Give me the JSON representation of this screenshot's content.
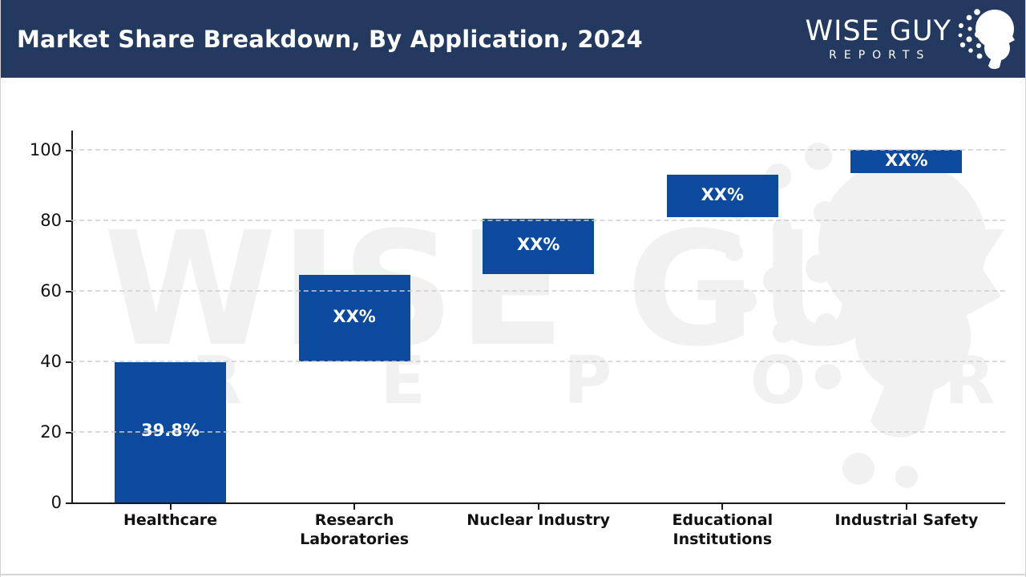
{
  "header": {
    "title": "Market Share Breakdown, By Application, 2024",
    "bg_color": "#23395f",
    "logo": {
      "line1": "WISE GUY",
      "line2": "REPORTS"
    }
  },
  "chart_data": {
    "type": "bar",
    "subtype": "waterfall",
    "title": "Market Share Breakdown, By Application, 2024",
    "xlabel": "",
    "ylabel": "",
    "categories": [
      "Healthcare",
      "Research Laboratories",
      "Nuclear Industry",
      "Educational Institutions",
      "Industrial Safety"
    ],
    "segments": [
      {
        "start": 0,
        "end": 39.8,
        "label": "39.8%"
      },
      {
        "start": 40.0,
        "end": 64.5,
        "label": "XX%"
      },
      {
        "start": 64.8,
        "end": 80.5,
        "label": "XX%"
      },
      {
        "start": 80.8,
        "end": 93.0,
        "label": "XX%"
      },
      {
        "start": 93.3,
        "end": 100.0,
        "label": "XX%"
      }
    ],
    "yticks": [
      0,
      20,
      40,
      60,
      80,
      100
    ],
    "ylim": [
      0,
      105
    ],
    "grid": "dashed horizontal, drawn over bars",
    "legend": "none",
    "bar_color": "#0c4a9e",
    "bar_label_color": "#ffffff",
    "axis_color": "#1a1a1a",
    "grid_color": "#cecece",
    "watermark": {
      "line1": "WISE GUY",
      "line2": "R E P O R T S"
    }
  }
}
